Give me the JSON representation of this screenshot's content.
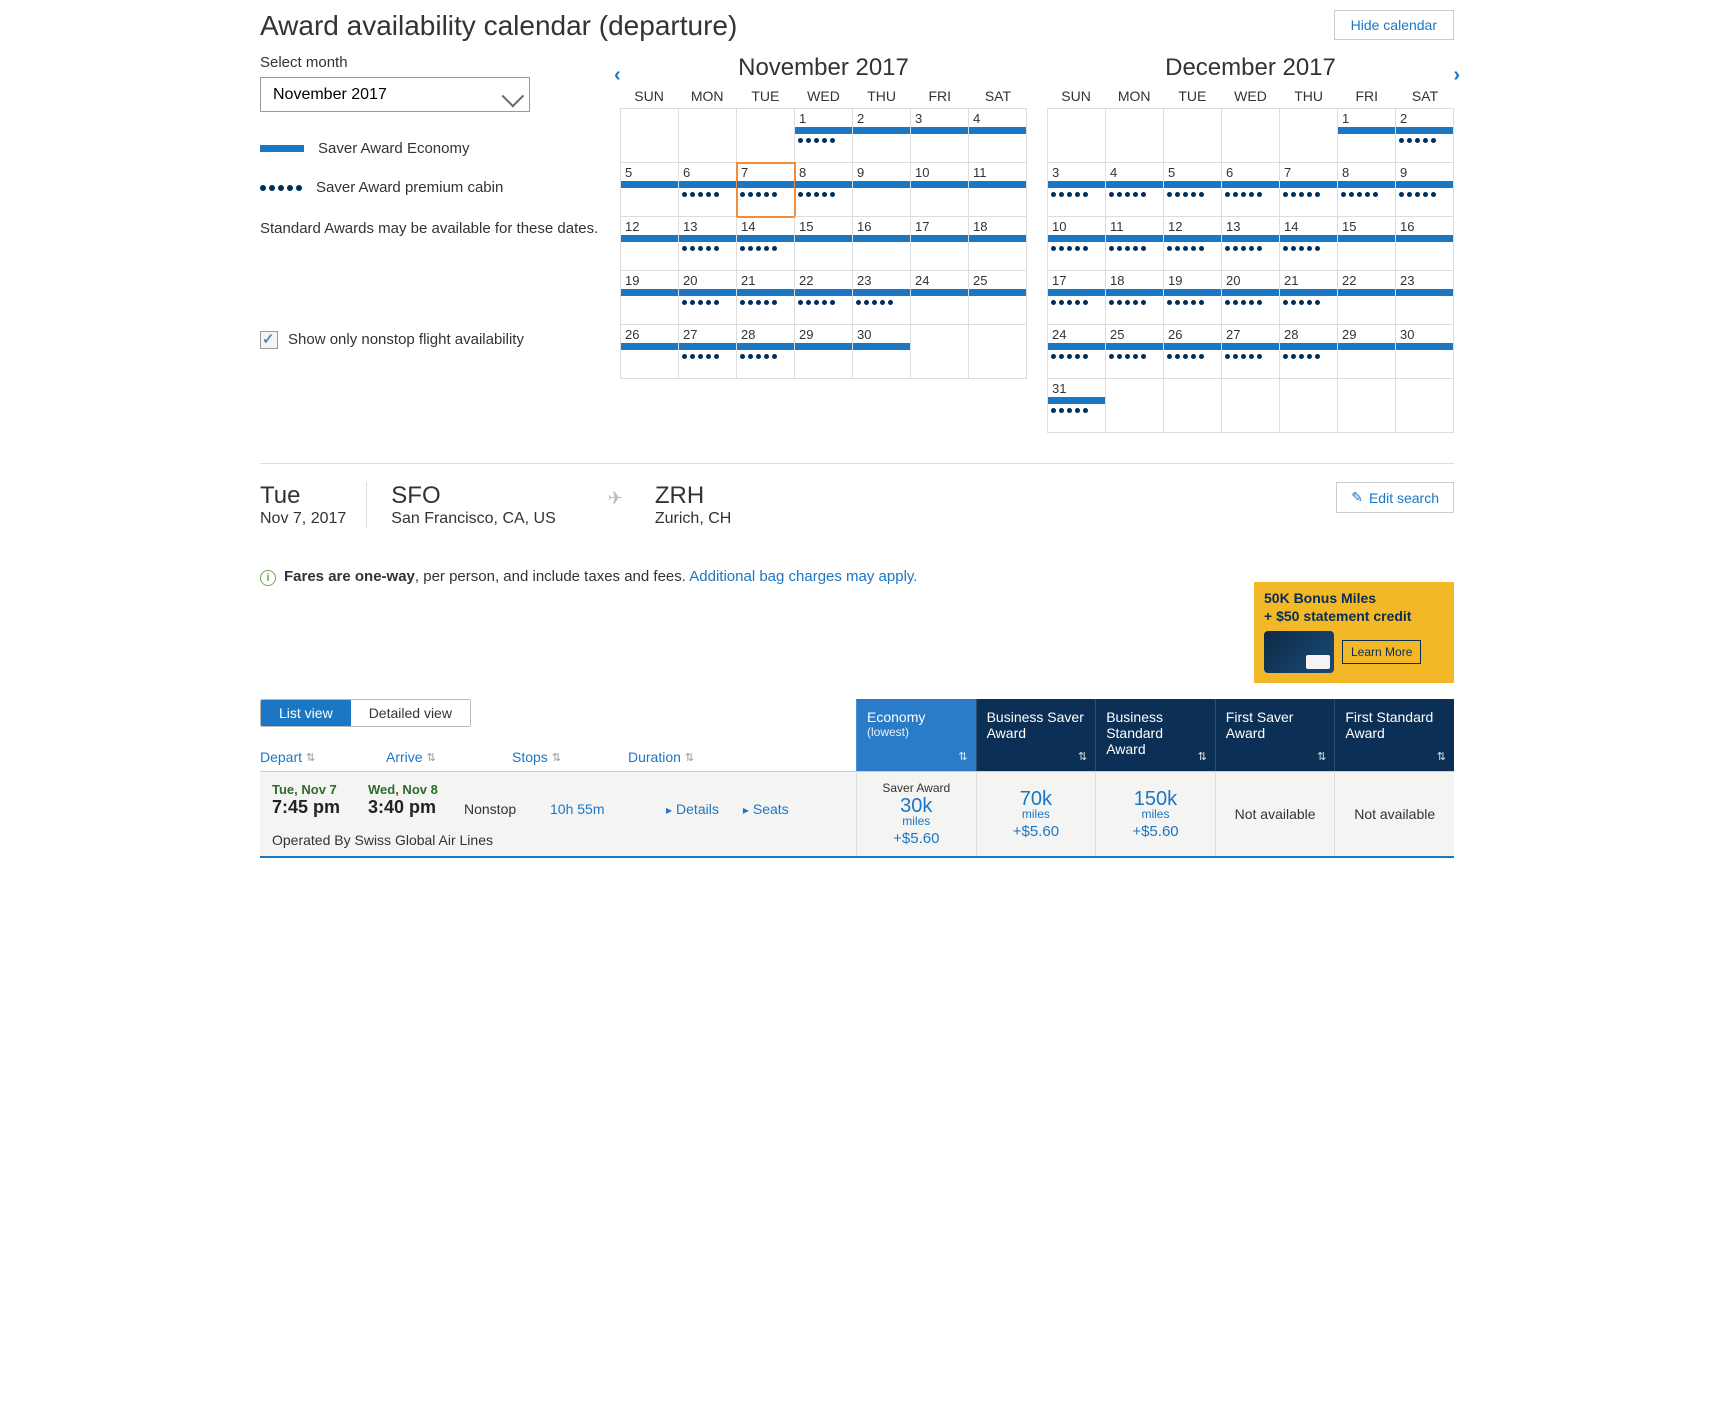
{
  "page_title": "Award availability calendar (departure)",
  "hide_calendar_btn": "Hide calendar",
  "select_month_label": "Select month",
  "selected_month": "November 2017",
  "legend": {
    "economy": "Saver Award Economy",
    "premium": "Saver Award premium cabin",
    "note": "Standard Awards may be available for these dates."
  },
  "nonstop_checkbox": "Show only nonstop flight availability",
  "weekdays": [
    "SUN",
    "MON",
    "TUE",
    "WED",
    "THU",
    "FRI",
    "SAT"
  ],
  "colors": {
    "blue": "#1b76c4",
    "navy": "#0c2f56",
    "dot_navy": "#002d5a",
    "green": "#2d6b2b",
    "orange_selected": "#f08c3a",
    "promo_yellow": "#f2b827"
  },
  "calendars": [
    {
      "title": "November 2017",
      "lead_blanks": 3,
      "trail_blanks": 2,
      "selected_day": 7,
      "days": [
        {
          "n": 1,
          "bar": true,
          "dots": true
        },
        {
          "n": 2,
          "bar": true,
          "dots": false
        },
        {
          "n": 3,
          "bar": true,
          "dots": false
        },
        {
          "n": 4,
          "bar": true,
          "dots": false
        },
        {
          "n": 5,
          "bar": true,
          "dots": false
        },
        {
          "n": 6,
          "bar": true,
          "dots": true
        },
        {
          "n": 7,
          "bar": true,
          "dots": true
        },
        {
          "n": 8,
          "bar": true,
          "dots": true
        },
        {
          "n": 9,
          "bar": true,
          "dots": false
        },
        {
          "n": 10,
          "bar": true,
          "dots": false
        },
        {
          "n": 11,
          "bar": true,
          "dots": false
        },
        {
          "n": 12,
          "bar": true,
          "dots": false
        },
        {
          "n": 13,
          "bar": true,
          "dots": true
        },
        {
          "n": 14,
          "bar": true,
          "dots": true
        },
        {
          "n": 15,
          "bar": true,
          "dots": false
        },
        {
          "n": 16,
          "bar": true,
          "dots": false
        },
        {
          "n": 17,
          "bar": true,
          "dots": false
        },
        {
          "n": 18,
          "bar": true,
          "dots": false
        },
        {
          "n": 19,
          "bar": true,
          "dots": false
        },
        {
          "n": 20,
          "bar": true,
          "dots": true
        },
        {
          "n": 21,
          "bar": true,
          "dots": true
        },
        {
          "n": 22,
          "bar": true,
          "dots": true
        },
        {
          "n": 23,
          "bar": true,
          "dots": true
        },
        {
          "n": 24,
          "bar": true,
          "dots": false
        },
        {
          "n": 25,
          "bar": true,
          "dots": false
        },
        {
          "n": 26,
          "bar": true,
          "dots": false
        },
        {
          "n": 27,
          "bar": true,
          "dots": true
        },
        {
          "n": 28,
          "bar": true,
          "dots": true
        },
        {
          "n": 29,
          "bar": true,
          "dots": false
        },
        {
          "n": 30,
          "bar": true,
          "dots": false
        }
      ]
    },
    {
      "title": "December 2017",
      "lead_blanks": 5,
      "trail_blanks": 6,
      "selected_day": null,
      "days": [
        {
          "n": 1,
          "bar": true,
          "dots": false
        },
        {
          "n": 2,
          "bar": true,
          "dots": true
        },
        {
          "n": 3,
          "bar": true,
          "dots": true
        },
        {
          "n": 4,
          "bar": true,
          "dots": true
        },
        {
          "n": 5,
          "bar": true,
          "dots": true
        },
        {
          "n": 6,
          "bar": true,
          "dots": true
        },
        {
          "n": 7,
          "bar": true,
          "dots": true
        },
        {
          "n": 8,
          "bar": true,
          "dots": true
        },
        {
          "n": 9,
          "bar": true,
          "dots": true
        },
        {
          "n": 10,
          "bar": true,
          "dots": true
        },
        {
          "n": 11,
          "bar": true,
          "dots": true
        },
        {
          "n": 12,
          "bar": true,
          "dots": true
        },
        {
          "n": 13,
          "bar": true,
          "dots": true
        },
        {
          "n": 14,
          "bar": true,
          "dots": true
        },
        {
          "n": 15,
          "bar": true,
          "dots": false
        },
        {
          "n": 16,
          "bar": true,
          "dots": false
        },
        {
          "n": 17,
          "bar": true,
          "dots": true
        },
        {
          "n": 18,
          "bar": true,
          "dots": true
        },
        {
          "n": 19,
          "bar": true,
          "dots": true
        },
        {
          "n": 20,
          "bar": true,
          "dots": true
        },
        {
          "n": 21,
          "bar": true,
          "dots": true
        },
        {
          "n": 22,
          "bar": true,
          "dots": false
        },
        {
          "n": 23,
          "bar": true,
          "dots": false
        },
        {
          "n": 24,
          "bar": true,
          "dots": true
        },
        {
          "n": 25,
          "bar": true,
          "dots": true
        },
        {
          "n": 26,
          "bar": true,
          "dots": true
        },
        {
          "n": 27,
          "bar": true,
          "dots": true
        },
        {
          "n": 28,
          "bar": true,
          "dots": true
        },
        {
          "n": 29,
          "bar": true,
          "dots": false
        },
        {
          "n": 30,
          "bar": true,
          "dots": false
        },
        {
          "n": 31,
          "bar": true,
          "dots": true
        }
      ]
    }
  ],
  "route": {
    "day_label": "Tue",
    "date_label": "Nov 7, 2017",
    "from_code": "SFO",
    "from_city": "San Francisco, CA, US",
    "to_code": "ZRH",
    "to_city": "Zurich, CH",
    "edit_search": "Edit search"
  },
  "fare_note": {
    "bold": "Fares are one-way",
    "rest": ", per person, and include taxes and fees. ",
    "link": "Additional bag charges may apply."
  },
  "promo": {
    "line1": "50K Bonus Miles",
    "line2": "+ $50 statement credit",
    "cta": "Learn More"
  },
  "view_tabs": {
    "list": "List view",
    "detailed": "Detailed view"
  },
  "sort_columns": [
    "Depart",
    "Arrive",
    "Stops",
    "Duration"
  ],
  "fare_headers": [
    {
      "label": "Economy",
      "sub": "(lowest)",
      "eco": true
    },
    {
      "label": "Business Saver Award",
      "sub": "",
      "eco": false
    },
    {
      "label": "Business Standard Award",
      "sub": "",
      "eco": false
    },
    {
      "label": "First Saver Award",
      "sub": "",
      "eco": false
    },
    {
      "label": "First Standard Award",
      "sub": "",
      "eco": false
    }
  ],
  "result": {
    "depart_date": "Tue, Nov 7",
    "depart_time": "7:45 pm",
    "arrive_date": "Wed, Nov 8",
    "arrive_time": "3:40 pm",
    "stops": "Nonstop",
    "duration": "10h 55m",
    "details": "Details",
    "seats": "Seats",
    "operated_by": "Operated By Swiss Global Air Lines",
    "fares": [
      {
        "label": "Saver Award",
        "miles": "30k",
        "miles_unit": "miles",
        "fee": "+$5.60"
      },
      {
        "label": "",
        "miles": "70k",
        "miles_unit": "miles",
        "fee": "+$5.60"
      },
      {
        "label": "",
        "miles": "150k",
        "miles_unit": "miles",
        "fee": "+$5.60"
      },
      {
        "na": "Not available"
      },
      {
        "na": "Not available"
      }
    ]
  }
}
